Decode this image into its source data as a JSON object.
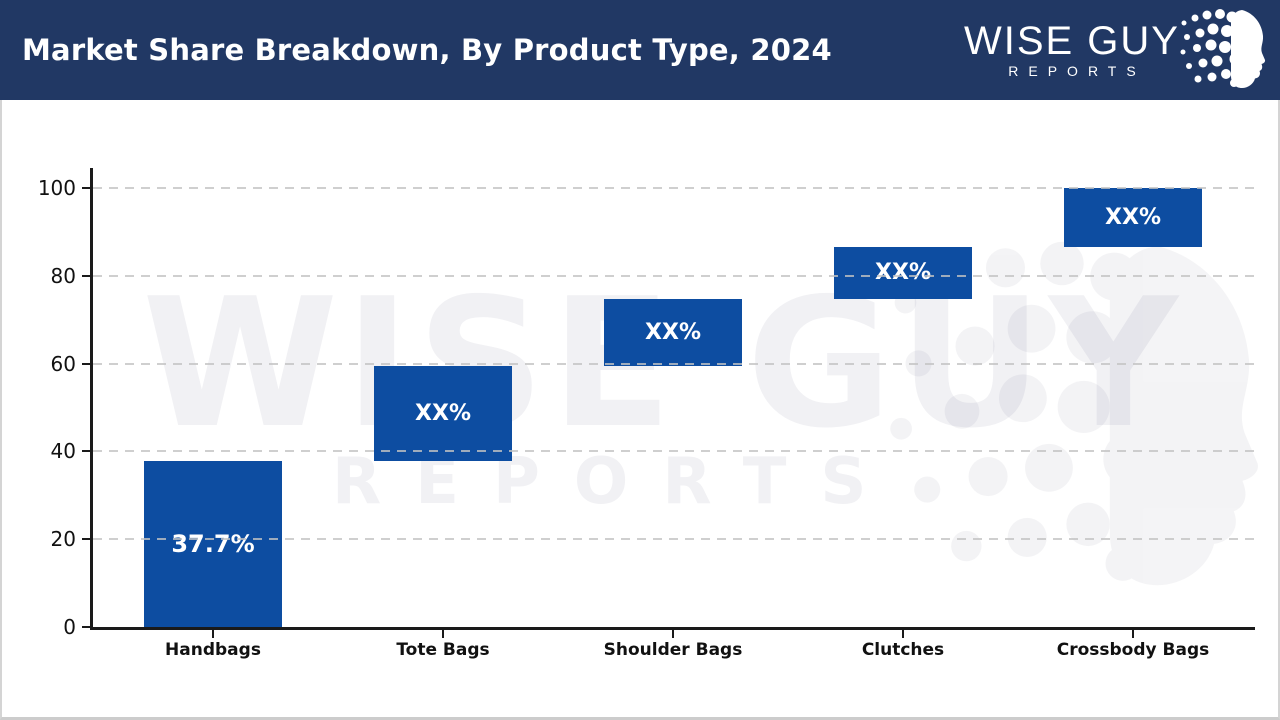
{
  "header": {
    "title": "Market Share Breakdown, By Product Type, 2024",
    "bg_color": "#213864",
    "logo": {
      "line1": "WISE GUY",
      "line2": "REPORTS"
    }
  },
  "watermark": {
    "line1": "WISE GUY",
    "line2": "REPORTS"
  },
  "chart_data": {
    "type": "bar",
    "subtype": "waterfall",
    "title": "Market Share Breakdown, By Product Type, 2024",
    "categories": [
      "Handbags",
      "Tote Bags",
      "Shoulder Bags",
      "Clutches",
      "Crossbody Bags"
    ],
    "segments": [
      {
        "category": "Handbags",
        "start": 0,
        "end": 37.7,
        "label": "37.7%"
      },
      {
        "category": "Tote Bags",
        "start": 37.7,
        "end": 59.4,
        "label": "XX%"
      },
      {
        "category": "Shoulder Bags",
        "start": 59.4,
        "end": 74.8,
        "label": "XX%"
      },
      {
        "category": "Clutches",
        "start": 74.8,
        "end": 86.6,
        "label": "XX%"
      },
      {
        "category": "Crossbody Bags",
        "start": 86.6,
        "end": 100,
        "label": "XX%"
      }
    ],
    "yticks": [
      0,
      20,
      40,
      60,
      80,
      100
    ],
    "ylim": [
      0,
      104.5
    ],
    "xlabel": "",
    "ylabel": "",
    "grid": "horizontal-dashed",
    "legend": "none",
    "bar_color": "#0D4DA1",
    "bar_label_color": "#ffffff",
    "axis_color": "#1a1a1a",
    "grid_color": "#c3c3c3"
  }
}
